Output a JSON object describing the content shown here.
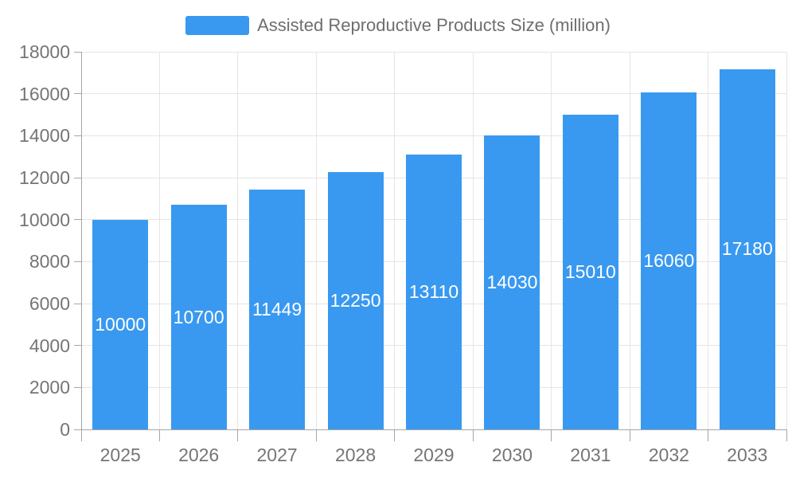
{
  "legend": {
    "label": "Assisted Reproductive Products Size (million)",
    "swatch_color": "#3999f0"
  },
  "chart_data": {
    "type": "bar",
    "title": "Assisted Reproductive Products Size (million)",
    "categories": [
      "2025",
      "2026",
      "2027",
      "2028",
      "2029",
      "2030",
      "2031",
      "2032",
      "2033"
    ],
    "series": [
      {
        "name": "Assisted Reproductive Products Size (million)",
        "values": [
          10000,
          10700,
          11449,
          12250,
          13110,
          14030,
          15010,
          16060,
          17180
        ],
        "color": "#3999f0"
      }
    ],
    "value_labels_shown": true,
    "value_label_position": "inside-middle",
    "xlabel": "",
    "ylabel": "",
    "ylim": [
      0,
      18000
    ],
    "ytick_interval": 2000,
    "yticks": [
      0,
      2000,
      4000,
      6000,
      8000,
      10000,
      12000,
      14000,
      16000,
      18000
    ],
    "grid": true,
    "legend_position": "top-center"
  },
  "colors": {
    "bar": "#3999f0",
    "grid_line": "#e5e5e5",
    "axis_line": "#a6a6a6",
    "tick_text": "#757575",
    "legend_text": "#6e6e6e",
    "value_text": "#ffffff",
    "background": "#ffffff"
  }
}
